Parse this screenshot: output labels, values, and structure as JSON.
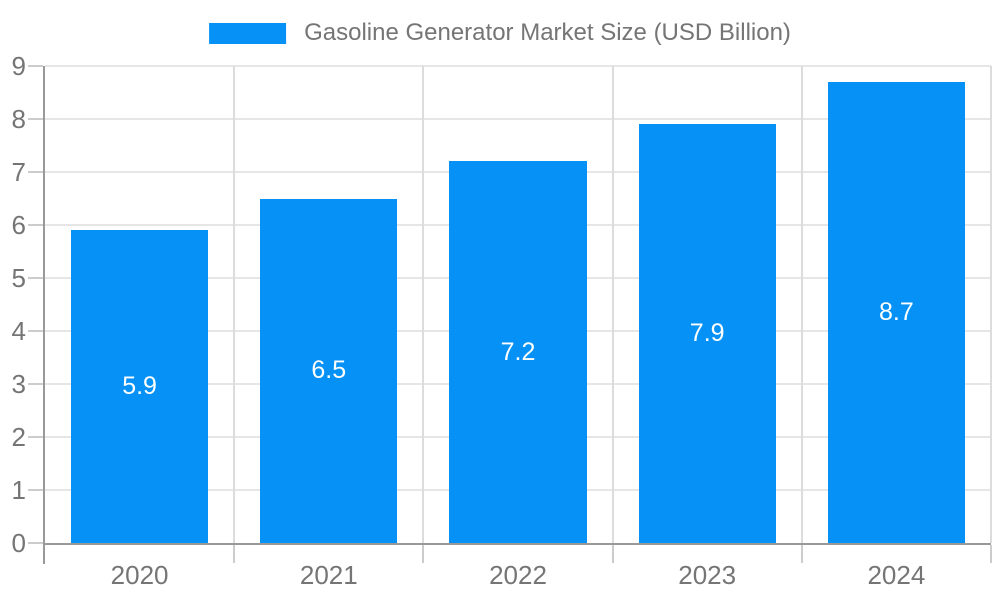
{
  "legend": {
    "position": "top",
    "swatch_color": "#0591F5"
  },
  "chart_data": {
    "type": "bar",
    "title": "Gasoline Generator Market Size (USD Billion)",
    "series": [
      {
        "name": "Gasoline Generator Market Size (USD Billion)",
        "values": [
          5.9,
          6.5,
          7.2,
          7.9,
          8.7
        ]
      }
    ],
    "categories": [
      "2020",
      "2021",
      "2022",
      "2023",
      "2024"
    ],
    "data_labels": [
      "5.9",
      "6.5",
      "7.2",
      "7.9",
      "8.7"
    ],
    "xlabel": "",
    "ylabel": "",
    "ylim": [
      0,
      9
    ],
    "yticks": [
      0,
      1,
      2,
      3,
      4,
      5,
      6,
      7,
      8,
      9
    ],
    "grid": true,
    "legend_position": "top",
    "bar_color": "#0591F5",
    "bar_label_color": "#ffffff",
    "axis_text_color": "#757575",
    "axis_line_color": "#999999",
    "gridline_h_color": "#e6e6e6",
    "gridline_v_color": "#dcdcdc",
    "tick_color": "#cccccc"
  }
}
